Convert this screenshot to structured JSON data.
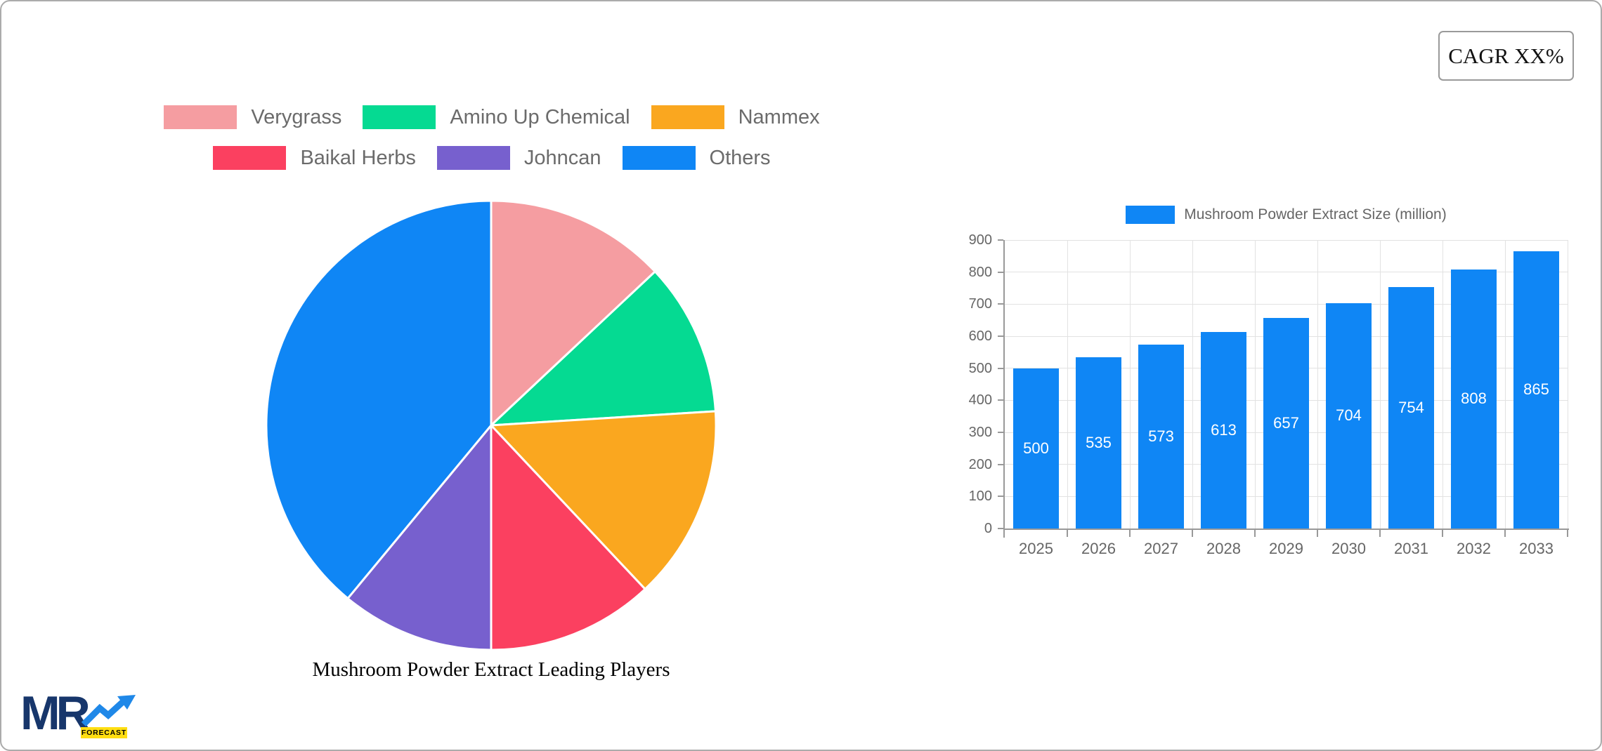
{
  "cagr_badge": "CAGR XX%",
  "logo": {
    "text": "MR",
    "sub": "FORECAST",
    "navy": "#17366b",
    "arrow_blue": "#1f88e8",
    "yellow": "#ffde12"
  },
  "chart_data": [
    {
      "type": "pie",
      "title": "Mushroom Powder Extract Leading Players",
      "legend_position": "top",
      "legend_rows": [
        [
          "Verygrass",
          "Amino Up Chemical",
          "Nammex"
        ],
        [
          "Baikal Herbs",
          "Johncan",
          "Others"
        ]
      ],
      "series": [
        {
          "name": "Verygrass",
          "value": 13,
          "color": "#f59da1"
        },
        {
          "name": "Amino Up Chemical",
          "value": 11,
          "color": "#05da92"
        },
        {
          "name": "Nammex",
          "value": 14,
          "color": "#faa71f"
        },
        {
          "name": "Baikal Herbs",
          "value": 12,
          "color": "#fb4060"
        },
        {
          "name": "Johncan",
          "value": 11,
          "color": "#7760ce"
        },
        {
          "name": "Others",
          "value": 39,
          "color": "#0f86f5"
        }
      ],
      "unit": "percent (estimated from slice angles)",
      "start_angle": "top",
      "direction": "clockwise",
      "slice_border_color": "#ffffff"
    },
    {
      "type": "bar",
      "legend": "Mushroom Powder Extract Size (million)",
      "legend_position": "top",
      "categories": [
        "2025",
        "2026",
        "2027",
        "2028",
        "2029",
        "2030",
        "2031",
        "2032",
        "2033"
      ],
      "values": [
        500,
        535,
        573,
        613,
        657,
        704,
        754,
        808,
        865
      ],
      "bar_color": "#0f86f5",
      "value_label_color": "#ffffff",
      "axis_label_color": "#666666",
      "ylim": [
        0,
        900
      ],
      "ytick_step": 100,
      "grid": true
    }
  ]
}
